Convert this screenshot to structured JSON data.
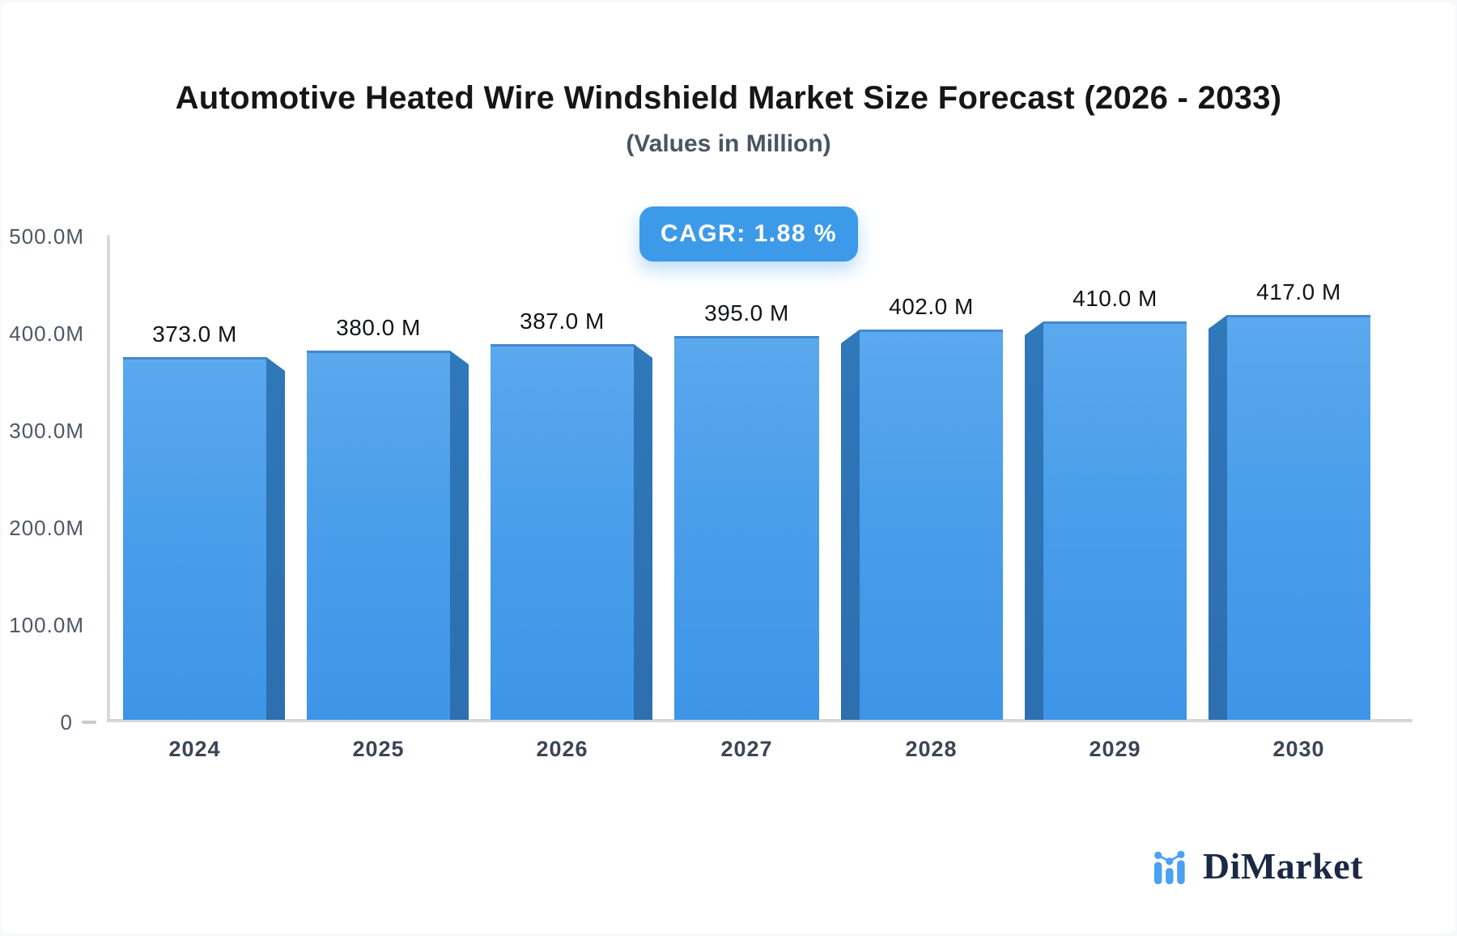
{
  "header": {
    "title": "Automotive Heated Wire Windshield Market Size Forecast (2026 - 2033)",
    "subtitle": "(Values in Million)",
    "cagr_badge": "CAGR: 1.88 %"
  },
  "chart_data": {
    "type": "bar",
    "title": "Automotive Heated Wire Windshield Market Size Forecast (2026 - 2033)",
    "subtitle": "(Values in Million)",
    "annotation": "CAGR: 1.88 %",
    "categories": [
      "2024",
      "2025",
      "2026",
      "2027",
      "2028",
      "2029",
      "2030"
    ],
    "values": [
      373.0,
      380.0,
      387.0,
      395.0,
      402.0,
      410.0,
      417.0
    ],
    "value_labels": [
      "373.0 M",
      "380.0 M",
      "387.0 M",
      "395.0 M",
      "402.0 M",
      "410.0 M",
      "417.0 M"
    ],
    "bar_3d_side": [
      "right",
      "right",
      "right",
      "none",
      "left",
      "left",
      "left"
    ],
    "xlabel": "",
    "ylabel": "",
    "ylim": [
      0,
      500
    ],
    "yticks": [
      {
        "value": 500,
        "label": "500.0M"
      },
      {
        "value": 400,
        "label": "400.0M"
      },
      {
        "value": 300,
        "label": "300.0M"
      },
      {
        "value": 200,
        "label": "200.0M"
      },
      {
        "value": 100,
        "label": "100.0M"
      },
      {
        "value": 0,
        "label": "0"
      }
    ],
    "grid": false,
    "legend": false
  },
  "branding": {
    "logo_text": "DiMarket",
    "logo_icon": "bar-chart-logo-icon"
  },
  "colors": {
    "bar_front_top": "#5ba8ed",
    "bar_front_bottom": "#3e95e8",
    "bar_side": "#2f75b6",
    "badge_blue": "#3d9ae8",
    "axis_gray": "#d6d8db",
    "tick_text": "#4d5766",
    "title_text": "#161616",
    "logo_navy": "#1b2944",
    "logo_blue": "#4aa0f5"
  }
}
